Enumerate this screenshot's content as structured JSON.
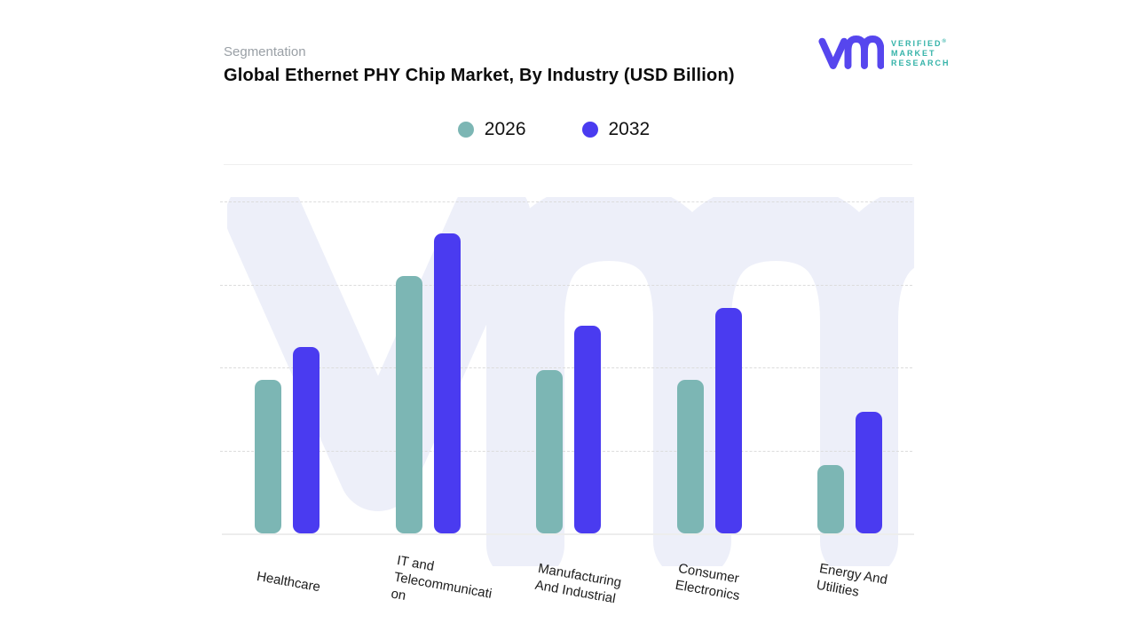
{
  "header": {
    "eyebrow": "Segmentation",
    "title": "Global Ethernet PHY Chip Market, By Industry (USD Billion)"
  },
  "logo": {
    "glyph": "vm-monogram",
    "line1": "VERIFIED",
    "registered": "®",
    "line2": "MARKET",
    "line3": "RESEARCH",
    "glyph_color": "#5646ee",
    "text_color": "#35b3a9"
  },
  "legend": {
    "items": [
      {
        "label": "2026",
        "color": "#7cb6b4"
      },
      {
        "label": "2032",
        "color": "#4a3bf0"
      }
    ]
  },
  "chart_data": {
    "type": "bar",
    "title": "Global Ethernet PHY Chip Market, By Industry (USD Billion)",
    "categories": [
      "Healthcare",
      "IT and Telecommunication",
      "Manufacturing And Industrial",
      "Consumer Electronics",
      "Energy And Utilities"
    ],
    "x_labels_lines": [
      [
        "Healthcare"
      ],
      [
        "IT and",
        "Telecommunicati",
        "on"
      ],
      [
        "Manufacturing",
        "And Industrial"
      ],
      [
        "Consumer",
        "Electronics"
      ],
      [
        "Energy And",
        "Utilities"
      ]
    ],
    "series": [
      {
        "name": "2026",
        "color": "#7cb6b4",
        "values": [
          1.85,
          3.1,
          1.97,
          1.85,
          0.82
        ]
      },
      {
        "name": "2032",
        "color": "#4a3bf0",
        "values": [
          2.25,
          3.62,
          2.5,
          2.72,
          1.46
        ]
      }
    ],
    "xlabel": "",
    "ylabel": "",
    "ylim": [
      0,
      4
    ],
    "y_tick_labels": "none (gridlines unlabeled)",
    "grid": "4 dashed horizontal gridlines, solid baseline",
    "legend_position": "top-center",
    "note": "values estimated in gridline units; 1 unit = one gridline interval; axis has no numeric labels",
    "watermark_text": "vm"
  }
}
